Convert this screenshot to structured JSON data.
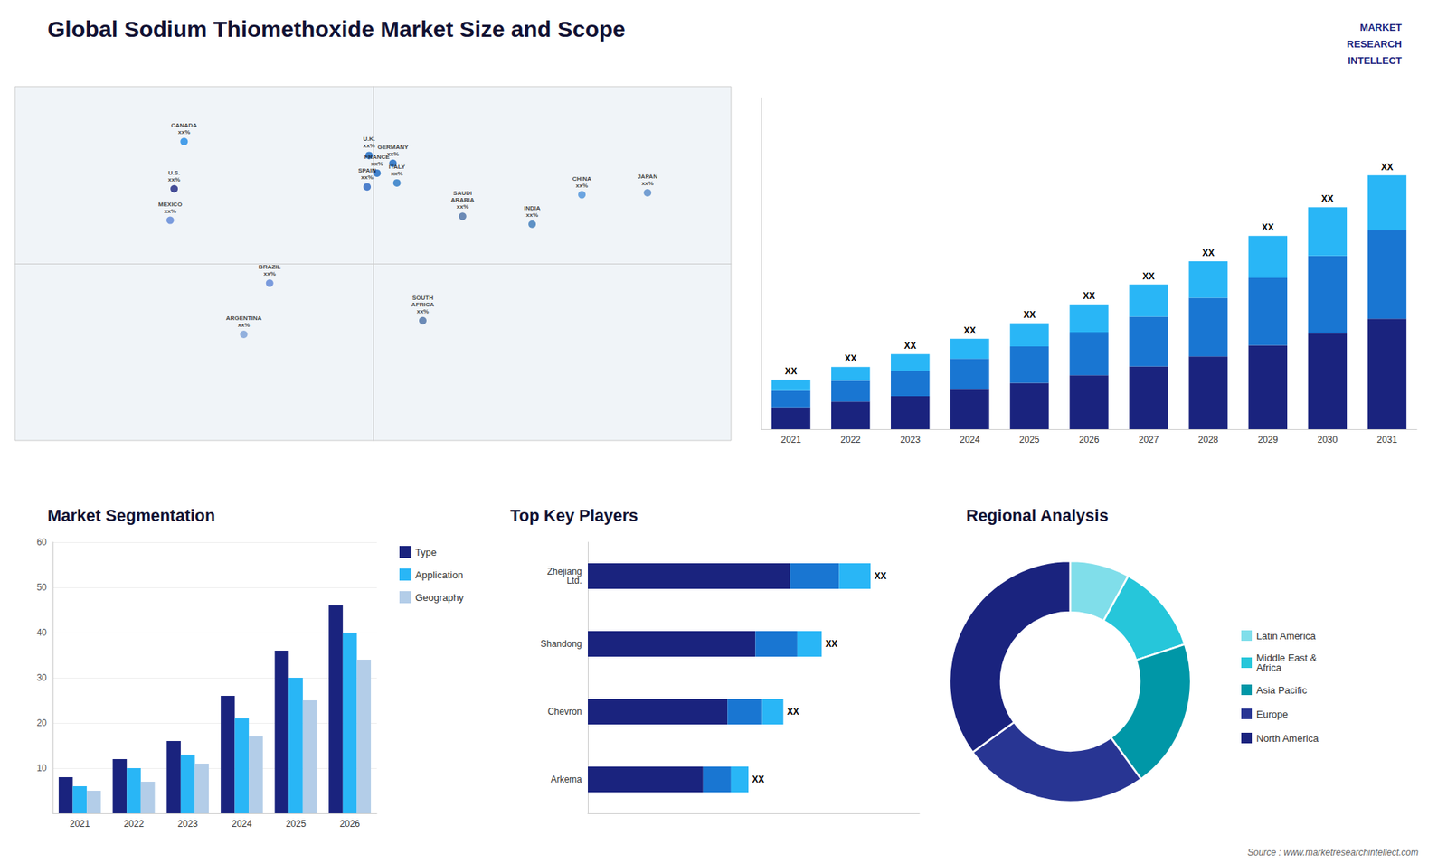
{
  "title": "Global Sodium Thiomethoxide Market Size and Scope",
  "annotations": [
    "MARKET",
    "RESEARCH",
    "INTELLECT",
    "Source : www.marketresearchintellect.com"
  ],
  "chart_data": [
    {
      "type": "scatter",
      "annotations": [
        {
          "text": "CANADA\nxx%",
          "x": -95,
          "y": 62
        },
        {
          "text": "U.S.\nxx%",
          "x": -100,
          "y": 38
        },
        {
          "text": "MEXICO\nxx%",
          "x": -102,
          "y": 22
        },
        {
          "text": "BRAZIL\nxx%",
          "x": -52,
          "y": -10
        },
        {
          "text": "ARGENTINA\nxx%",
          "x": -65,
          "y": -36
        },
        {
          "text": "U.K.\nxx%",
          "x": -2,
          "y": 55
        },
        {
          "text": "FRANCE\nxx%",
          "x": 2,
          "y": 46
        },
        {
          "text": "SPAIN\nxx%",
          "x": -3,
          "y": 39
        },
        {
          "text": "GERMANY\nxx%",
          "x": 10,
          "y": 51
        },
        {
          "text": "ITALY\nxx%",
          "x": 12,
          "y": 41
        },
        {
          "text": "SAUDI\nARABIA\nxx%",
          "x": 45,
          "y": 24
        },
        {
          "text": "SOUTH\nAFRICA\nxx%",
          "x": 25,
          "y": -29
        },
        {
          "text": "CHINA\nxx%",
          "x": 105,
          "y": 35
        },
        {
          "text": "INDIA\nxx%",
          "x": 80,
          "y": 20
        },
        {
          "text": "JAPAN\nxx%",
          "x": 138,
          "y": 36
        }
      ],
      "colors": [
        "#1e88e5",
        "#1a237e",
        "#5c85d6",
        "#5c85d6",
        "#7a9fd6",
        "#1565c0",
        "#1565c0",
        "#2563c0",
        "#1565c0",
        "#2575c4",
        "#4a6fa5",
        "#4a6fa5",
        "#4a90d9",
        "#3a78b8",
        "#5588c8"
      ],
      "xlim": [
        -180,
        180
      ],
      "ylim": [
        -90,
        90
      ],
      "tick_labels": false,
      "grid": false
    },
    {
      "type": "bar",
      "stacked": true,
      "categories": [
        "2021",
        "2022",
        "2023",
        "2024",
        "2025",
        "2026",
        "2027",
        "2028",
        "2029",
        "2030",
        "2031"
      ],
      "series": [
        {
          "color": "#1a237e",
          "values": [
            1.0,
            1.25,
            1.5,
            1.8,
            2.1,
            2.45,
            2.85,
            3.3,
            3.8,
            4.35,
            5.0
          ]
        },
        {
          "color": "#1976d2",
          "values": [
            0.75,
            0.95,
            1.15,
            1.4,
            1.65,
            1.95,
            2.25,
            2.65,
            3.05,
            3.5,
            4.0
          ]
        },
        {
          "color": "#29b6f6",
          "values": [
            0.5,
            0.62,
            0.75,
            0.9,
            1.05,
            1.25,
            1.45,
            1.65,
            1.9,
            2.2,
            2.5
          ]
        }
      ],
      "annotations": [
        {
          "text": "XX",
          "category": "2021"
        },
        {
          "text": "XX",
          "category": "2022"
        },
        {
          "text": "XX",
          "category": "2023"
        },
        {
          "text": "XX",
          "category": "2024"
        },
        {
          "text": "XX",
          "category": "2025"
        },
        {
          "text": "XX",
          "category": "2026"
        },
        {
          "text": "XX",
          "category": "2027"
        },
        {
          "text": "XX",
          "category": "2028"
        },
        {
          "text": "XX",
          "category": "2029"
        },
        {
          "text": "XX",
          "category": "2030"
        },
        {
          "text": "XX",
          "category": "2031"
        }
      ],
      "ylim": [
        0,
        15
      ],
      "yticks": [],
      "tick_labels": "x",
      "grid": false
    },
    {
      "type": "bar",
      "title": "Market Segmentation",
      "categories": [
        "2021",
        "2022",
        "2023",
        "2024",
        "2025",
        "2026"
      ],
      "series": [
        {
          "name": "Type",
          "color": "#1a237e",
          "values": [
            8,
            12,
            16,
            26,
            36,
            46
          ]
        },
        {
          "name": "Application",
          "color": "#29b6f6",
          "values": [
            6,
            10,
            13,
            21,
            30,
            40
          ]
        },
        {
          "name": "Geography",
          "color": "#b3cde8",
          "values": [
            5,
            7,
            11,
            17,
            25,
            34
          ]
        }
      ],
      "ylim": [
        0,
        60
      ],
      "yticks": [
        10,
        20,
        30,
        40,
        50,
        60
      ],
      "grid": true,
      "legend": "upper right"
    },
    {
      "type": "bar",
      "title": "Top Key Players",
      "orientation": "horizontal",
      "stacked": true,
      "categories": [
        "Zhejiang\nLtd.",
        "Shandong",
        "Chevron",
        "Arkema"
      ],
      "series": [
        {
          "color": "#1a237e",
          "values": [
            0.58,
            0.48,
            0.4,
            0.33
          ]
        },
        {
          "color": "#1976d2",
          "values": [
            0.14,
            0.12,
            0.1,
            0.08
          ]
        },
        {
          "color": "#29b6f6",
          "values": [
            0.09,
            0.07,
            0.06,
            0.05
          ]
        }
      ],
      "annotations": [
        {
          "text": "XX",
          "category": "Zhejiang\nLtd."
        },
        {
          "text": "XX",
          "category": "Shandong"
        },
        {
          "text": "XX",
          "category": "Chevron"
        },
        {
          "text": "XX",
          "category": "Arkema"
        }
      ],
      "xlim": [
        0,
        0.95
      ],
      "xticks": [],
      "tick_labels": "y",
      "grid": false
    },
    {
      "type": "pie",
      "title": "Regional Analysis",
      "categories": [
        "Latin America",
        "Middle East &\nAfrica",
        "Asia Pacific",
        "Europe",
        "North America"
      ],
      "values": [
        8,
        12,
        20,
        25,
        35
      ],
      "colors": [
        "#80deea",
        "#26c6da",
        "#0097a7",
        "#283593",
        "#1a237e"
      ],
      "legend": "right"
    }
  ]
}
